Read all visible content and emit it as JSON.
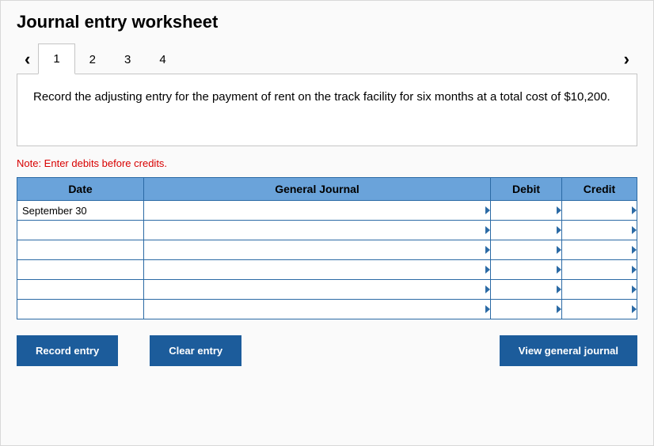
{
  "title": "Journal entry worksheet",
  "nav": {
    "prev_label": "‹",
    "next_label": "›"
  },
  "tabs": [
    "1",
    "2",
    "3",
    "4"
  ],
  "active_tab_index": 0,
  "instruction": "Record the adjusting entry for the payment of rent on the track facility for six months at a total cost of $10,200.",
  "note": "Note: Enter debits before credits.",
  "table": {
    "columns": [
      "Date",
      "General Journal",
      "Debit",
      "Credit"
    ],
    "header_bg": "#6aa3da",
    "border_color": "#2b6aa5",
    "rows": [
      {
        "date": "September 30",
        "journal": "",
        "debit": "",
        "credit": ""
      },
      {
        "date": "",
        "journal": "",
        "debit": "",
        "credit": ""
      },
      {
        "date": "",
        "journal": "",
        "debit": "",
        "credit": ""
      },
      {
        "date": "",
        "journal": "",
        "debit": "",
        "credit": ""
      },
      {
        "date": "",
        "journal": "",
        "debit": "",
        "credit": ""
      },
      {
        "date": "",
        "journal": "",
        "debit": "",
        "credit": ""
      }
    ]
  },
  "buttons": {
    "record": "Record entry",
    "clear": "Clear entry",
    "view": "View general journal"
  },
  "colors": {
    "button_bg": "#1c5c9b",
    "note_color": "#d80000",
    "panel_border": "#c5c5c5"
  }
}
